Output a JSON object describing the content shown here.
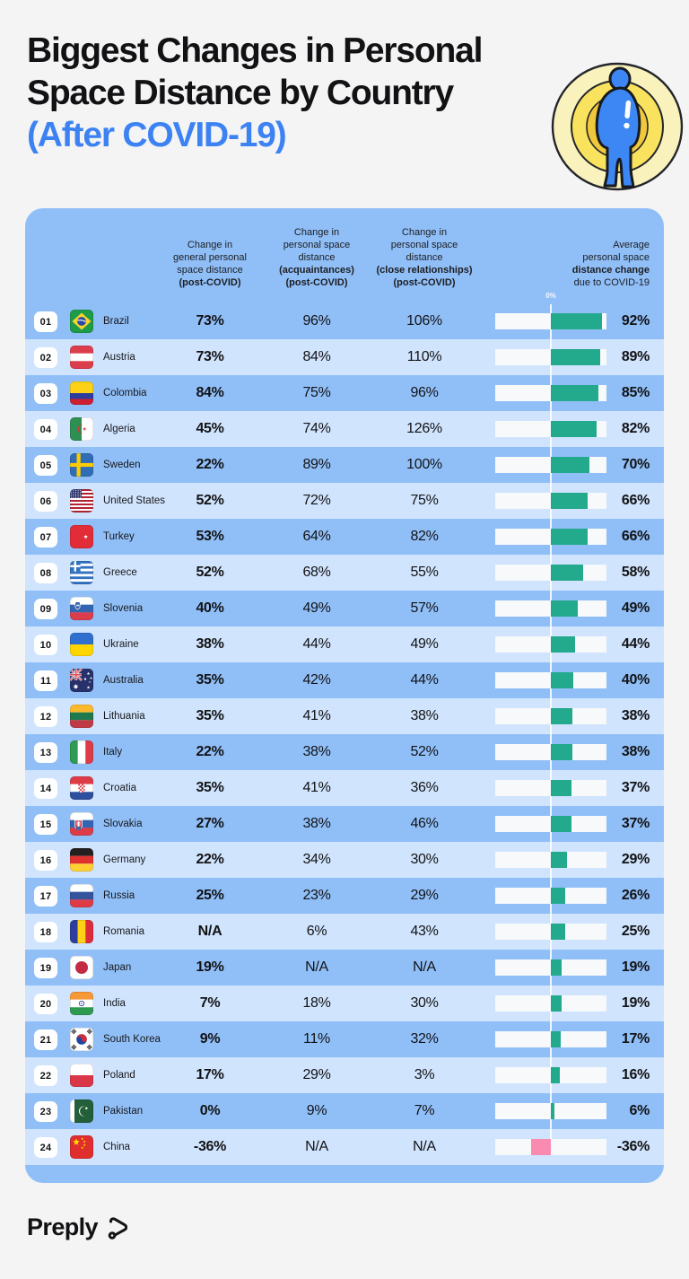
{
  "header": {
    "title_line1": "Biggest Changes in Personal",
    "title_line2": "Space Distance by Country",
    "title_line3": "(After COVID-19)",
    "accent_color": "#3d82f2"
  },
  "table": {
    "zero_label": "0%",
    "colors": {
      "row_dark": "#90bff8",
      "row_light": "#d0e4fd",
      "bar_positive": "#23a98c",
      "bar_negative": "#f98bb1",
      "track": "#f7f9fb"
    },
    "columns": [
      {
        "name": "general",
        "lines": [
          {
            "text": "Change in",
            "bold": false
          },
          {
            "text": "general personal",
            "bold": false
          },
          {
            "text": "space distance",
            "bold": false
          },
          {
            "text": "(post-COVID)",
            "bold": true
          }
        ]
      },
      {
        "name": "acquaintances",
        "lines": [
          {
            "text": "Change in",
            "bold": false
          },
          {
            "text": "personal space",
            "bold": false
          },
          {
            "text": "distance",
            "bold": false
          },
          {
            "text": "(acquaintances)",
            "bold": true
          },
          {
            "text": "(post-COVID)",
            "bold": true
          }
        ]
      },
      {
        "name": "close-relationships",
        "lines": [
          {
            "text": "Change in",
            "bold": false
          },
          {
            "text": "personal space",
            "bold": false
          },
          {
            "text": "distance",
            "bold": false
          },
          {
            "text": "(close relationships)",
            "bold": true
          },
          {
            "text": "(post-COVID)",
            "bold": true
          }
        ]
      },
      {
        "name": "average",
        "lines": [
          {
            "text": "Average",
            "bold": false
          },
          {
            "text": "personal space",
            "bold": false
          },
          {
            "text": "distance change",
            "bold": true
          },
          {
            "text": "due to COVID-19",
            "bold": false
          }
        ]
      }
    ],
    "rows": [
      {
        "rank": "01",
        "flag": "brazil",
        "country": "Brazil",
        "general": "73%",
        "acquaintances": "96%",
        "close": "106%",
        "average": "92%",
        "average_value": 92
      },
      {
        "rank": "02",
        "flag": "austria",
        "country": "Austria",
        "general": "73%",
        "acquaintances": "84%",
        "close": "110%",
        "average": "89%",
        "average_value": 89
      },
      {
        "rank": "03",
        "flag": "colombia",
        "country": "Colombia",
        "general": "84%",
        "acquaintances": "75%",
        "close": "96%",
        "average": "85%",
        "average_value": 85
      },
      {
        "rank": "04",
        "flag": "algeria",
        "country": "Algeria",
        "general": "45%",
        "acquaintances": "74%",
        "close": "126%",
        "average": "82%",
        "average_value": 82
      },
      {
        "rank": "05",
        "flag": "sweden",
        "country": "Sweden",
        "general": "22%",
        "acquaintances": "89%",
        "close": "100%",
        "average": "70%",
        "average_value": 70
      },
      {
        "rank": "06",
        "flag": "us",
        "country": "United States",
        "general": "52%",
        "acquaintances": "72%",
        "close": "75%",
        "average": "66%",
        "average_value": 66
      },
      {
        "rank": "07",
        "flag": "turkey",
        "country": "Turkey",
        "general": "53%",
        "acquaintances": "64%",
        "close": "82%",
        "average": "66%",
        "average_value": 66
      },
      {
        "rank": "08",
        "flag": "greece",
        "country": "Greece",
        "general": "52%",
        "acquaintances": "68%",
        "close": "55%",
        "average": "58%",
        "average_value": 58
      },
      {
        "rank": "09",
        "flag": "slovenia",
        "country": "Slovenia",
        "general": "40%",
        "acquaintances": "49%",
        "close": "57%",
        "average": "49%",
        "average_value": 49
      },
      {
        "rank": "10",
        "flag": "ukraine",
        "country": "Ukraine",
        "general": "38%",
        "acquaintances": "44%",
        "close": "49%",
        "average": "44%",
        "average_value": 44
      },
      {
        "rank": "11",
        "flag": "australia",
        "country": "Australia",
        "general": "35%",
        "acquaintances": "42%",
        "close": "44%",
        "average": "40%",
        "average_value": 40
      },
      {
        "rank": "12",
        "flag": "lithuania",
        "country": "Lithuania",
        "general": "35%",
        "acquaintances": "41%",
        "close": "38%",
        "average": "38%",
        "average_value": 38
      },
      {
        "rank": "13",
        "flag": "italy",
        "country": "Italy",
        "general": "22%",
        "acquaintances": "38%",
        "close": "52%",
        "average": "38%",
        "average_value": 38
      },
      {
        "rank": "14",
        "flag": "croatia",
        "country": "Croatia",
        "general": "35%",
        "acquaintances": "41%",
        "close": "36%",
        "average": "37%",
        "average_value": 37
      },
      {
        "rank": "15",
        "flag": "slovakia",
        "country": "Slovakia",
        "general": "27%",
        "acquaintances": "38%",
        "close": "46%",
        "average": "37%",
        "average_value": 37
      },
      {
        "rank": "16",
        "flag": "germany",
        "country": "Germany",
        "general": "22%",
        "acquaintances": "34%",
        "close": "30%",
        "average": "29%",
        "average_value": 29
      },
      {
        "rank": "17",
        "flag": "russia",
        "country": "Russia",
        "general": "25%",
        "acquaintances": "23%",
        "close": "29%",
        "average": "26%",
        "average_value": 26
      },
      {
        "rank": "18",
        "flag": "romania",
        "country": "Romania",
        "general": "N/A",
        "acquaintances": "6%",
        "close": "43%",
        "average": "25%",
        "average_value": 25
      },
      {
        "rank": "19",
        "flag": "japan",
        "country": "Japan",
        "general": "19%",
        "acquaintances": "N/A",
        "close": "N/A",
        "average": "19%",
        "average_value": 19
      },
      {
        "rank": "20",
        "flag": "india",
        "country": "India",
        "general": "7%",
        "acquaintances": "18%",
        "close": "30%",
        "average": "19%",
        "average_value": 19
      },
      {
        "rank": "21",
        "flag": "south_korea",
        "country": "South Korea",
        "general": "9%",
        "acquaintances": "11%",
        "close": "32%",
        "average": "17%",
        "average_value": 17
      },
      {
        "rank": "22",
        "flag": "poland",
        "country": "Poland",
        "general": "17%",
        "acquaintances": "29%",
        "close": "3%",
        "average": "16%",
        "average_value": 16
      },
      {
        "rank": "23",
        "flag": "pakistan",
        "country": "Pakistan",
        "general": "0%",
        "acquaintances": "9%",
        "close": "7%",
        "average": "6%",
        "average_value": 6
      },
      {
        "rank": "24",
        "flag": "china",
        "country": "China",
        "general": "-36%",
        "acquaintances": "N/A",
        "close": "N/A",
        "average": "-36%",
        "average_value": -36
      }
    ]
  },
  "chart_data": {
    "type": "bar",
    "title": "Biggest Changes in Personal Space Distance by Country (After COVID-19)",
    "categories": [
      "Brazil",
      "Austria",
      "Colombia",
      "Algeria",
      "Sweden",
      "United States",
      "Turkey",
      "Greece",
      "Slovenia",
      "Ukraine",
      "Australia",
      "Lithuania",
      "Italy",
      "Croatia",
      "Slovakia",
      "Germany",
      "Russia",
      "Romania",
      "Japan",
      "India",
      "South Korea",
      "Poland",
      "Pakistan",
      "China"
    ],
    "series": [
      {
        "name": "Change in general personal space distance (post-COVID)",
        "values": [
          73,
          73,
          84,
          45,
          22,
          52,
          53,
          52,
          40,
          38,
          35,
          35,
          22,
          35,
          27,
          22,
          25,
          null,
          19,
          7,
          9,
          17,
          0,
          -36
        ]
      },
      {
        "name": "Change in personal space distance (acquaintances) (post-COVID)",
        "values": [
          96,
          84,
          75,
          74,
          89,
          72,
          64,
          68,
          49,
          44,
          42,
          41,
          38,
          41,
          38,
          34,
          23,
          6,
          null,
          18,
          11,
          29,
          9,
          null
        ]
      },
      {
        "name": "Change in personal space distance (close relationships) (post-COVID)",
        "values": [
          106,
          110,
          96,
          126,
          100,
          75,
          82,
          55,
          57,
          49,
          44,
          38,
          52,
          36,
          46,
          30,
          29,
          43,
          null,
          30,
          32,
          3,
          7,
          null
        ]
      },
      {
        "name": "Average personal space distance change due to COVID-19",
        "values": [
          92,
          89,
          85,
          82,
          70,
          66,
          66,
          58,
          49,
          44,
          40,
          38,
          38,
          37,
          37,
          29,
          26,
          25,
          19,
          19,
          17,
          16,
          6,
          -36
        ]
      }
    ],
    "xlim": [
      -100,
      100
    ],
    "axis_marker": "0%",
    "bar_chart_series": "Average personal space distance change due to COVID-19",
    "legend_position": "none",
    "grid": false
  },
  "footer": {
    "logo_text": "Preply"
  }
}
